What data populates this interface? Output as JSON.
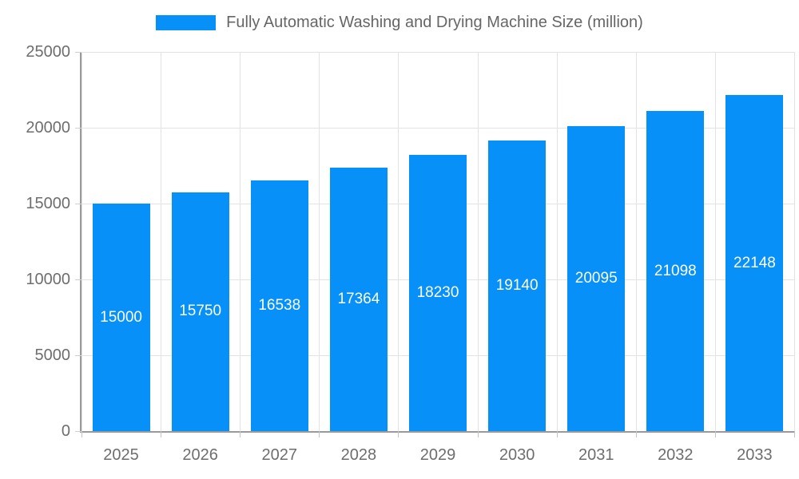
{
  "legend": {
    "label": "Fully Automatic Washing and Drying Machine Size (million)"
  },
  "colors": {
    "bar": "#0690f8",
    "bar_label_text": "#ffffff",
    "grid": "#e3e3e3",
    "axis": "#9a9a9a",
    "tick_text": "#6e6e6e",
    "legend_text": "#666666"
  },
  "chart_data": {
    "type": "bar",
    "title": "Fully Automatic Washing and Drying Machine Size (million)",
    "categories": [
      "2025",
      "2026",
      "2027",
      "2028",
      "2029",
      "2030",
      "2031",
      "2032",
      "2033"
    ],
    "values": [
      15000,
      15750,
      16538,
      17364,
      18230,
      19140,
      20095,
      21098,
      22148
    ],
    "bar_labels": [
      15000,
      15750,
      16538,
      17364,
      18230,
      19140,
      20095,
      21098,
      22148
    ],
    "xlabel": "",
    "ylabel": "",
    "ylim": [
      0,
      25000
    ],
    "yticks": [
      0,
      5000,
      10000,
      15000,
      20000,
      25000
    ],
    "grid": true,
    "legend_position": "top"
  }
}
